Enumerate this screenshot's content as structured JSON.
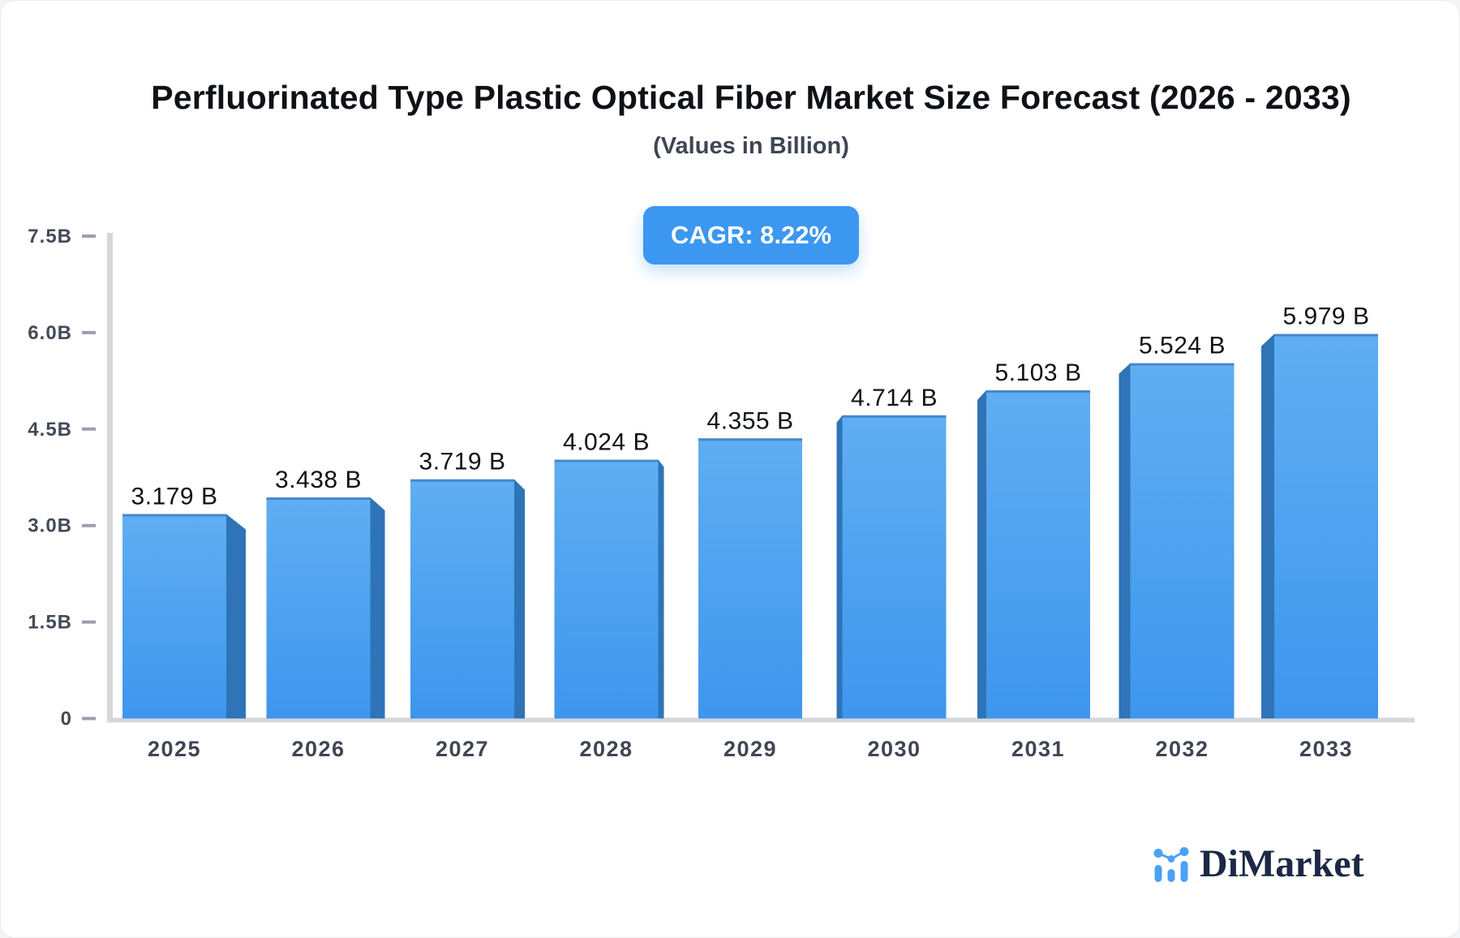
{
  "header": {
    "title": "Perfluorinated Type Plastic Optical Fiber Market Size Forecast (2026 - 2033)",
    "subtitle": "(Values in Billion)",
    "cagr_badge": "CAGR: 8.22%"
  },
  "chart_data": {
    "type": "bar",
    "title": "Perfluorinated Type Plastic Optical Fiber Market Size Forecast (2026 - 2033)",
    "subtitle": "(Values in Billion)",
    "annotation": "CAGR: 8.22%",
    "categories": [
      "2025",
      "2026",
      "2027",
      "2028",
      "2029",
      "2030",
      "2031",
      "2032",
      "2033"
    ],
    "values": [
      3.179,
      3.438,
      3.719,
      4.024,
      4.355,
      4.714,
      5.103,
      5.524,
      5.979
    ],
    "value_labels": [
      "3.179 B",
      "3.438 B",
      "3.719 B",
      "4.024 B",
      "4.355 B",
      "4.714 B",
      "5.103 B",
      "5.524 B",
      "5.979 B"
    ],
    "unit": "B",
    "xlabel": "",
    "ylabel": "",
    "ylim": [
      0,
      7.5
    ],
    "ytick_labels": [
      "0",
      "1.5B",
      "3.0B",
      "4.5B",
      "6.0B",
      "7.5B"
    ],
    "grid": false,
    "legend": null,
    "bar_style": "3d"
  },
  "brand": {
    "logo_text": "DiMarket"
  },
  "icons": {
    "brand_logo_icon": "mini-bar-line-chart-icon"
  },
  "colors": {
    "badge_bg": "#3B97F0",
    "badge_text": "#FFFFFF",
    "bar_face_top": "#60AEF2",
    "bar_face_bottom": "#3E96ED",
    "bar_top_edge": "#4687CB",
    "bar_side": "#2E74B7",
    "axis_line": "#D4D7DC",
    "tick": "#9AA1AB",
    "axis_label": "#434B58",
    "x_label": "#3E4653",
    "value_label": "#0E1217",
    "title": "#0E1217",
    "subtitle": "#3E4653",
    "logo_text": "#1C2845",
    "logo_icon": "#4BA1F5",
    "background": "#FFFFFF"
  }
}
